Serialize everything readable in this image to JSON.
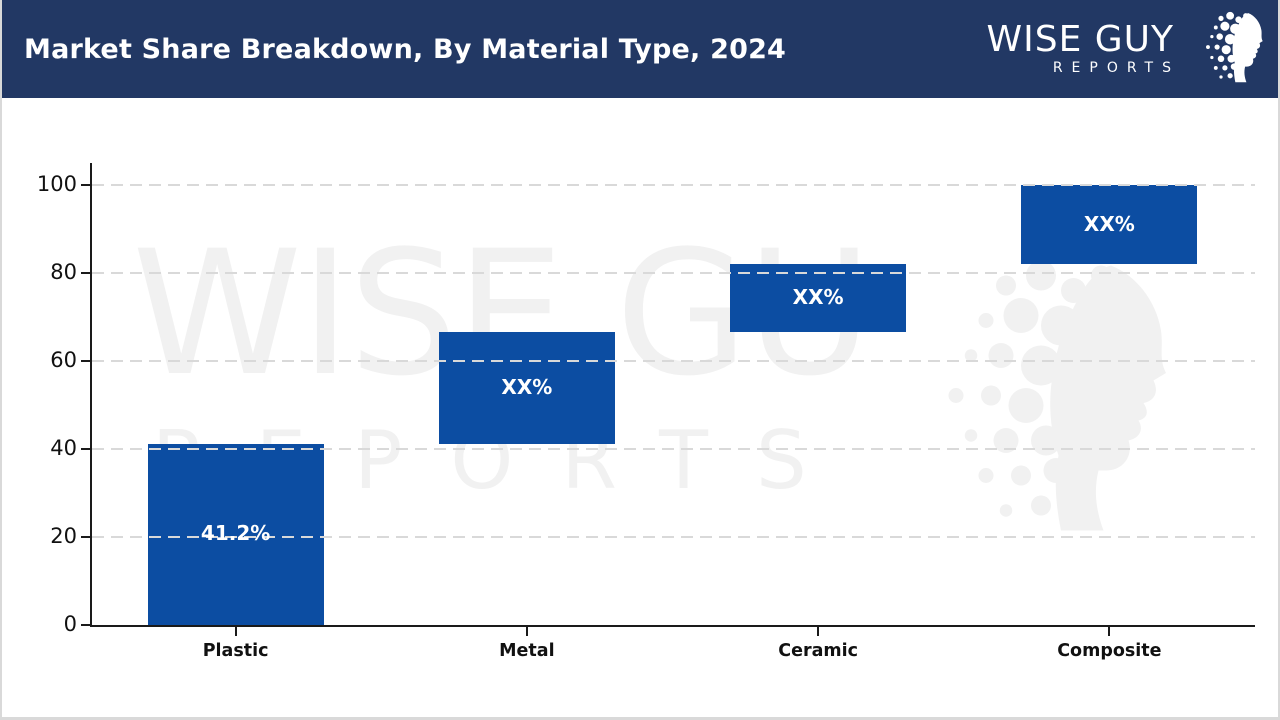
{
  "header": {
    "title": "Market Share Breakdown, By Material Type, 2024",
    "bg_color": "#223864",
    "logo": {
      "line1": "WISE GUY",
      "line2": "REPORTS",
      "face_icon": "dotted-head-profile"
    }
  },
  "watermark": {
    "line1": "WISE GU",
    "line2": "REPORTS",
    "color": "#f1f1f1"
  },
  "chart_data": {
    "type": "bar",
    "subtype": "floating-waterfall",
    "title": "Market Share Breakdown, By Material Type, 2024",
    "categories": [
      "Plastic",
      "Metal",
      "Ceramic",
      "Composite"
    ],
    "bars": [
      {
        "category": "Plastic",
        "label": "41.2%",
        "start": 0,
        "end": 41.2
      },
      {
        "category": "Metal",
        "label": "XX%",
        "start": 41.2,
        "end": 66.5
      },
      {
        "category": "Ceramic",
        "label": "XX%",
        "start": 66.5,
        "end": 82.0
      },
      {
        "category": "Composite",
        "label": "XX%",
        "start": 82.0,
        "end": 100.0
      }
    ],
    "xlabel": "",
    "ylabel": "",
    "ylim": [
      0,
      100
    ],
    "yticks": [
      0,
      20,
      40,
      60,
      80,
      100
    ],
    "grid": {
      "horizontal": true,
      "style": "dashed",
      "color": "#d9d9d9",
      "drawn_over_bars": true
    },
    "legend": "none",
    "bar_color": "#0c4da2",
    "bar_label_color": "#ffffff",
    "axis_color": "#1a1a1a"
  }
}
